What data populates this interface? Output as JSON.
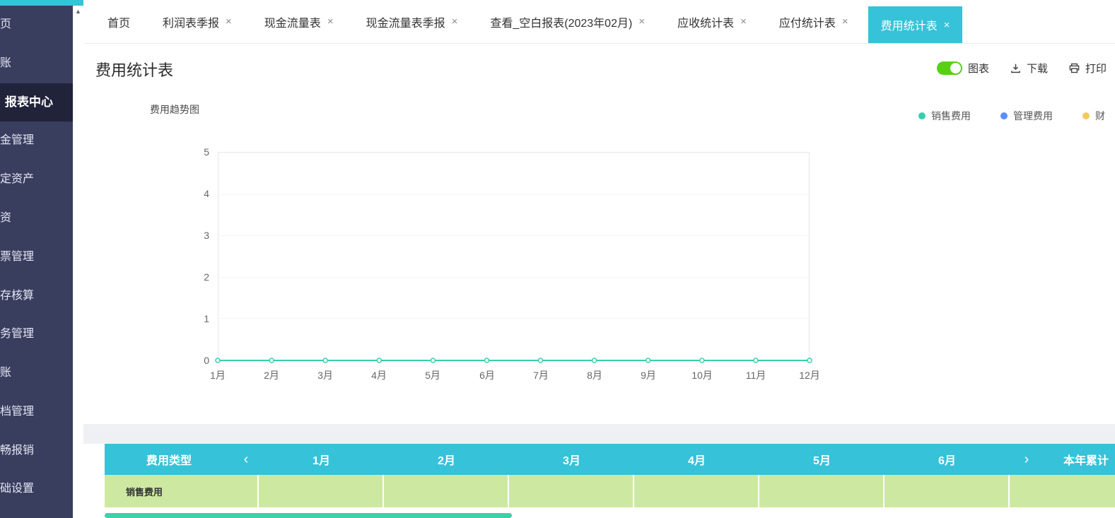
{
  "colors": {
    "accent_cyan": "#36c2d9",
    "sidebar_bg": "#393e5f",
    "sidebar_active_bg": "#20233a",
    "toggle_green": "#57d112",
    "table_row_green": "#cde9a1",
    "series_sales_teal": "#36cfae",
    "series_admin_blue": "#5b8ff9",
    "series_fin_yellow": "#f6c95c"
  },
  "sidebar": {
    "scroll_up": "▲",
    "items": [
      {
        "label": "页",
        "active": false
      },
      {
        "label": "账",
        "active": false
      },
      {
        "label": "报表中心",
        "active": true
      },
      {
        "label": "金管理",
        "active": false
      },
      {
        "label": "定资产",
        "active": false
      },
      {
        "label": "资",
        "active": false
      },
      {
        "label": "票管理",
        "active": false
      },
      {
        "label": "存核算",
        "active": false
      },
      {
        "label": "务管理",
        "active": false
      },
      {
        "label": "账",
        "active": false
      },
      {
        "label": "档管理",
        "active": false
      },
      {
        "label": "畅报销",
        "active": false
      },
      {
        "label": "础设置",
        "active": false
      }
    ]
  },
  "tabs": [
    {
      "label": "首页",
      "close": "",
      "active": false
    },
    {
      "label": "利润表季报",
      "close": "×",
      "active": false
    },
    {
      "label": "现金流量表",
      "close": "×",
      "active": false
    },
    {
      "label": "现金流量表季报",
      "close": "×",
      "active": false
    },
    {
      "label": "查看_空白报表(2023年02月)",
      "close": "×",
      "active": false
    },
    {
      "label": "应收统计表",
      "close": "×",
      "active": false
    },
    {
      "label": "应付统计表",
      "close": "×",
      "active": false
    },
    {
      "label": "费用统计表",
      "close": "×",
      "active": true
    }
  ],
  "page": {
    "title": "费用统计表",
    "toolbar": {
      "chart_toggle_label": "图表",
      "download_label": "下载",
      "print_label": "打印"
    }
  },
  "chart_data": {
    "type": "line",
    "title": "费用趋势图",
    "x": [
      "1月",
      "2月",
      "3月",
      "4月",
      "5月",
      "6月",
      "7月",
      "8月",
      "9月",
      "10月",
      "11月",
      "12月"
    ],
    "yticks": [
      0,
      1,
      2,
      3,
      4,
      5
    ],
    "ylim": [
      0,
      5
    ],
    "grid": true,
    "legend_position": "top-right",
    "series": [
      {
        "name": "销售费用",
        "color": "#36cfae",
        "values": [
          0,
          0,
          0,
          0,
          0,
          0,
          0,
          0,
          0,
          0,
          0,
          0
        ]
      },
      {
        "name": "管理费用",
        "color": "#5b8ff9",
        "values": []
      },
      {
        "name": "财",
        "color": "#f6c95c",
        "values": []
      }
    ]
  },
  "table": {
    "prev": "‹",
    "next": "›",
    "columns": [
      "费用类型",
      "1月",
      "2月",
      "3月",
      "4月",
      "5月",
      "6月",
      "本年累计"
    ],
    "rows": [
      {
        "type": "销售费用",
        "values": [
          "",
          "",
          "",
          "",
          "",
          "",
          ""
        ]
      }
    ]
  }
}
